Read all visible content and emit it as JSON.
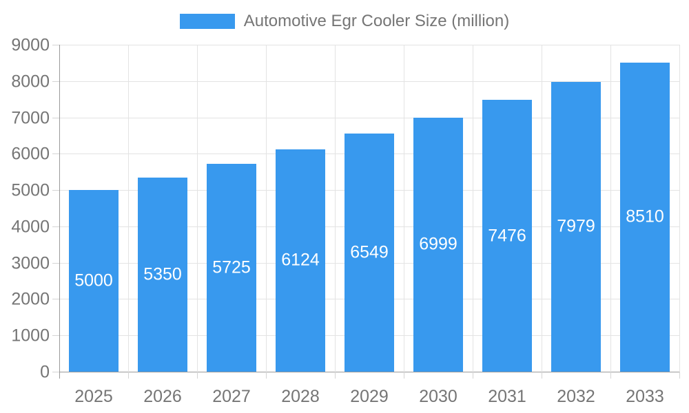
{
  "legend": {
    "label": "Automotive Egr Cooler Size (million)",
    "swatch_color": "#3899EE"
  },
  "chart_data": {
    "type": "bar",
    "title": "Automotive Egr Cooler Size (million)",
    "series_name": "Automotive Egr Cooler Size (million)",
    "categories": [
      "2025",
      "2026",
      "2027",
      "2028",
      "2029",
      "2030",
      "2031",
      "2032",
      "2033"
    ],
    "values": [
      5000,
      5350,
      5725,
      6124,
      6549,
      6999,
      7476,
      7979,
      8510
    ],
    "value_labels": [
      "5000",
      "5350",
      "5725",
      "6124",
      "6549",
      "6999",
      "7476",
      "7979",
      "8510"
    ],
    "xlabel": "",
    "ylabel": "",
    "ylim": [
      0,
      9000
    ],
    "y_tick_step": 1000,
    "y_tick_labels": [
      "0",
      "1000",
      "2000",
      "3000",
      "4000",
      "5000",
      "6000",
      "7000",
      "8000",
      "9000"
    ],
    "grid": true,
    "grid_x": true,
    "grid_y": true,
    "legend_position": "top",
    "value_label_position": "inside-center",
    "colors": {
      "bar": "#3899EE",
      "value_label": "#FFFFFF",
      "axis_text": "#757575",
      "grid_line": "#E3E3E3",
      "axis_line": "#999999",
      "tick_line": "#D4D4D4"
    }
  }
}
